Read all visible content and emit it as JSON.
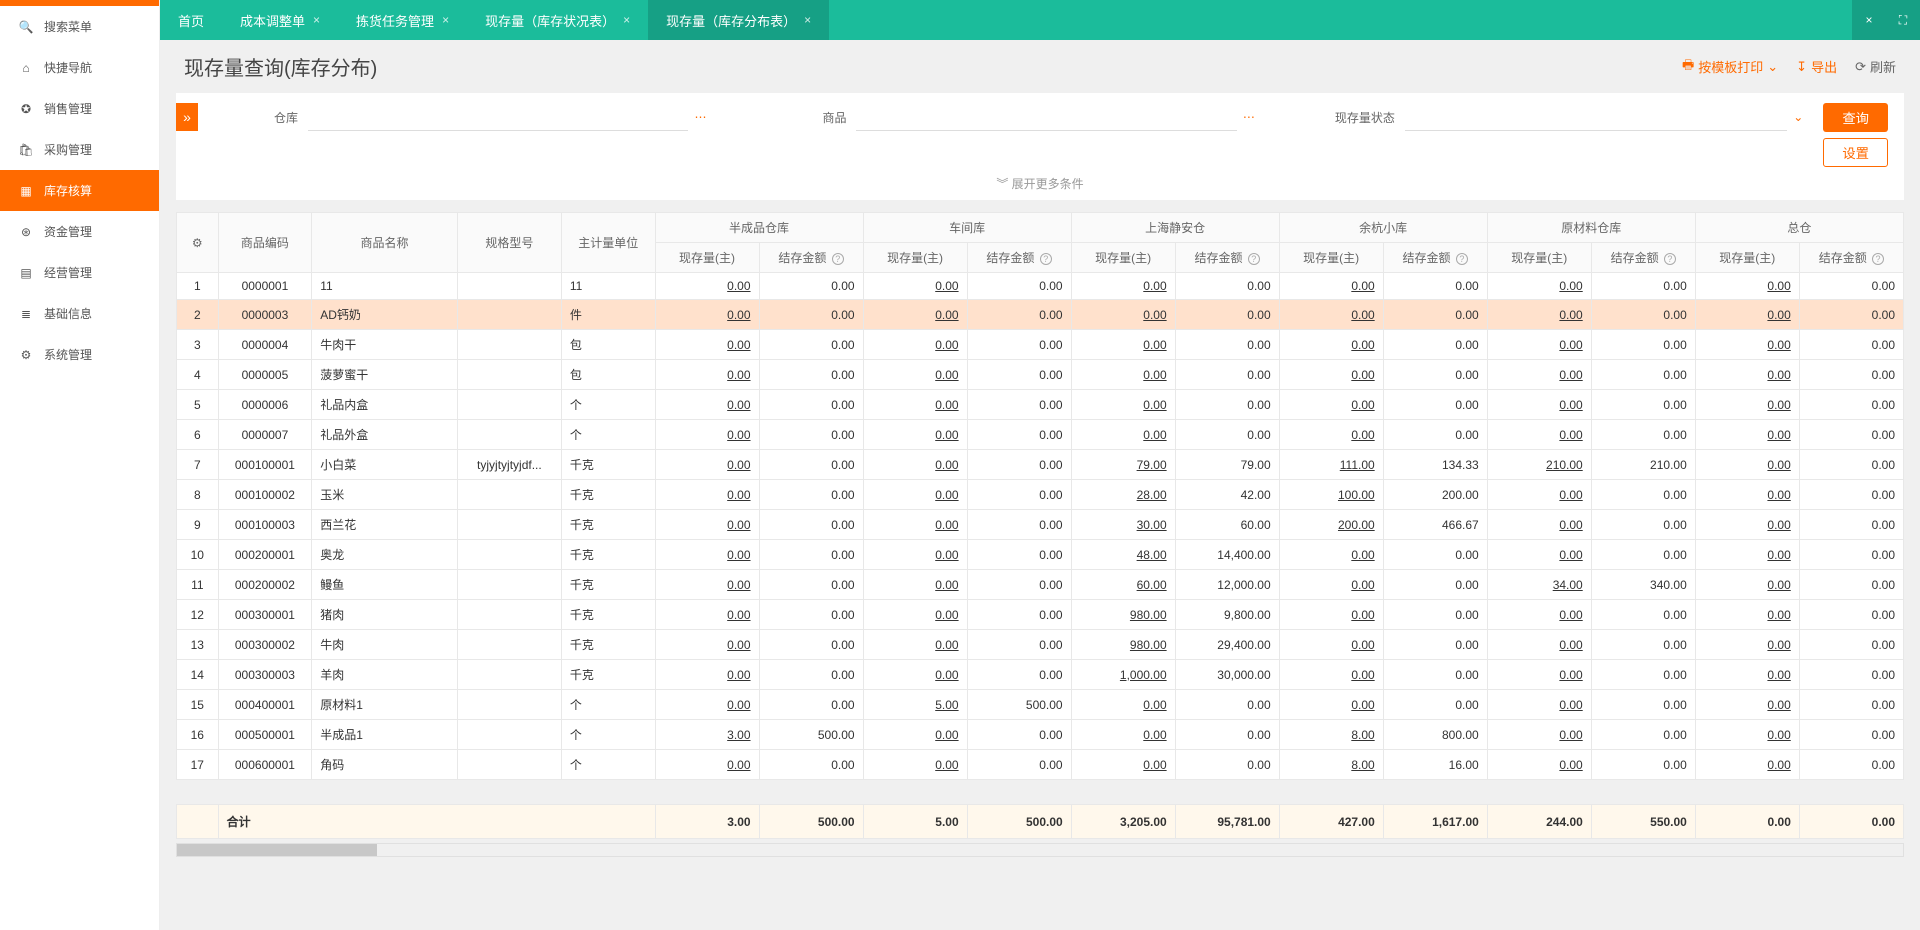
{
  "sidebar": {
    "items": [
      {
        "label": "搜索菜单",
        "icon": "search"
      },
      {
        "label": "快捷导航",
        "icon": "home"
      },
      {
        "label": "销售管理",
        "icon": "badge"
      },
      {
        "label": "采购管理",
        "icon": "bag"
      },
      {
        "label": "库存核算",
        "icon": "box",
        "active": true
      },
      {
        "label": "资金管理",
        "icon": "money"
      },
      {
        "label": "经营管理",
        "icon": "clipboard"
      },
      {
        "label": "基础信息",
        "icon": "layers"
      },
      {
        "label": "系统管理",
        "icon": "gear"
      }
    ]
  },
  "tabs": [
    {
      "label": "首页",
      "closable": false
    },
    {
      "label": "成本调整单",
      "closable": true
    },
    {
      "label": "拣货任务管理",
      "closable": true
    },
    {
      "label": "现存量（库存状况表）",
      "closable": true
    },
    {
      "label": "现存量（库存分布表）",
      "closable": true,
      "active": true
    }
  ],
  "page": {
    "title": "现存量查询(库存分布)",
    "print": "按模板打印",
    "export": "导出",
    "refresh": "刷新"
  },
  "filters": {
    "warehouse": {
      "label": "仓库",
      "value": ""
    },
    "product": {
      "label": "商品",
      "value": ""
    },
    "status": {
      "label": "现存量状态",
      "value": ""
    },
    "query": "查询",
    "settings": "设置",
    "expand": "展开更多条件"
  },
  "table": {
    "group_headers": [
      "",
      "商品编码",
      "商品名称",
      "规格型号",
      "主计量单位",
      "半成品仓库",
      "车间库",
      "上海静安仓",
      "余杭小库",
      "原材料仓库",
      "总仓"
    ],
    "sub_headers": [
      "现存量(主)",
      "结存金额"
    ],
    "gear_col": "⚙",
    "rows": [
      {
        "n": 1,
        "code": "0000001",
        "name": "11",
        "spec": "",
        "unit": "11",
        "v": [
          [
            "0.00",
            "0.00"
          ],
          [
            "0.00",
            "0.00"
          ],
          [
            "0.00",
            "0.00"
          ],
          [
            "0.00",
            "0.00"
          ],
          [
            "0.00",
            "0.00"
          ],
          [
            "0.00",
            "0.00"
          ]
        ]
      },
      {
        "n": 2,
        "code": "0000003",
        "name": "AD钙奶",
        "spec": "",
        "unit": "件",
        "hl": true,
        "v": [
          [
            "0.00",
            "0.00"
          ],
          [
            "0.00",
            "0.00"
          ],
          [
            "0.00",
            "0.00"
          ],
          [
            "0.00",
            "0.00"
          ],
          [
            "0.00",
            "0.00"
          ],
          [
            "0.00",
            "0.00"
          ]
        ]
      },
      {
        "n": 3,
        "code": "0000004",
        "name": "牛肉干",
        "spec": "",
        "unit": "包",
        "v": [
          [
            "0.00",
            "0.00"
          ],
          [
            "0.00",
            "0.00"
          ],
          [
            "0.00",
            "0.00"
          ],
          [
            "0.00",
            "0.00"
          ],
          [
            "0.00",
            "0.00"
          ],
          [
            "0.00",
            "0.00"
          ]
        ]
      },
      {
        "n": 4,
        "code": "0000005",
        "name": "菠萝蜜干",
        "spec": "",
        "unit": "包",
        "v": [
          [
            "0.00",
            "0.00"
          ],
          [
            "0.00",
            "0.00"
          ],
          [
            "0.00",
            "0.00"
          ],
          [
            "0.00",
            "0.00"
          ],
          [
            "0.00",
            "0.00"
          ],
          [
            "0.00",
            "0.00"
          ]
        ]
      },
      {
        "n": 5,
        "code": "0000006",
        "name": "礼品内盒",
        "spec": "",
        "unit": "个",
        "v": [
          [
            "0.00",
            "0.00"
          ],
          [
            "0.00",
            "0.00"
          ],
          [
            "0.00",
            "0.00"
          ],
          [
            "0.00",
            "0.00"
          ],
          [
            "0.00",
            "0.00"
          ],
          [
            "0.00",
            "0.00"
          ]
        ]
      },
      {
        "n": 6,
        "code": "0000007",
        "name": "礼品外盒",
        "spec": "",
        "unit": "个",
        "v": [
          [
            "0.00",
            "0.00"
          ],
          [
            "0.00",
            "0.00"
          ],
          [
            "0.00",
            "0.00"
          ],
          [
            "0.00",
            "0.00"
          ],
          [
            "0.00",
            "0.00"
          ],
          [
            "0.00",
            "0.00"
          ]
        ]
      },
      {
        "n": 7,
        "code": "000100001",
        "name": "小白菜",
        "spec": "tyjyjtyjtyjdf...",
        "unit": "千克",
        "v": [
          [
            "0.00",
            "0.00"
          ],
          [
            "0.00",
            "0.00"
          ],
          [
            "79.00",
            "79.00"
          ],
          [
            "111.00",
            "134.33"
          ],
          [
            "210.00",
            "210.00"
          ],
          [
            "0.00",
            "0.00"
          ]
        ]
      },
      {
        "n": 8,
        "code": "000100002",
        "name": "玉米",
        "spec": "",
        "unit": "千克",
        "v": [
          [
            "0.00",
            "0.00"
          ],
          [
            "0.00",
            "0.00"
          ],
          [
            "28.00",
            "42.00"
          ],
          [
            "100.00",
            "200.00"
          ],
          [
            "0.00",
            "0.00"
          ],
          [
            "0.00",
            "0.00"
          ]
        ]
      },
      {
        "n": 9,
        "code": "000100003",
        "name": "西兰花",
        "spec": "",
        "unit": "千克",
        "v": [
          [
            "0.00",
            "0.00"
          ],
          [
            "0.00",
            "0.00"
          ],
          [
            "30.00",
            "60.00"
          ],
          [
            "200.00",
            "466.67"
          ],
          [
            "0.00",
            "0.00"
          ],
          [
            "0.00",
            "0.00"
          ]
        ]
      },
      {
        "n": 10,
        "code": "000200001",
        "name": "奥龙",
        "spec": "",
        "unit": "千克",
        "v": [
          [
            "0.00",
            "0.00"
          ],
          [
            "0.00",
            "0.00"
          ],
          [
            "48.00",
            "14,400.00"
          ],
          [
            "0.00",
            "0.00"
          ],
          [
            "0.00",
            "0.00"
          ],
          [
            "0.00",
            "0.00"
          ]
        ]
      },
      {
        "n": 11,
        "code": "000200002",
        "name": "鳗鱼",
        "spec": "",
        "unit": "千克",
        "v": [
          [
            "0.00",
            "0.00"
          ],
          [
            "0.00",
            "0.00"
          ],
          [
            "60.00",
            "12,000.00"
          ],
          [
            "0.00",
            "0.00"
          ],
          [
            "34.00",
            "340.00"
          ],
          [
            "0.00",
            "0.00"
          ]
        ]
      },
      {
        "n": 12,
        "code": "000300001",
        "name": "猪肉",
        "spec": "",
        "unit": "千克",
        "v": [
          [
            "0.00",
            "0.00"
          ],
          [
            "0.00",
            "0.00"
          ],
          [
            "980.00",
            "9,800.00"
          ],
          [
            "0.00",
            "0.00"
          ],
          [
            "0.00",
            "0.00"
          ],
          [
            "0.00",
            "0.00"
          ]
        ]
      },
      {
        "n": 13,
        "code": "000300002",
        "name": "牛肉",
        "spec": "",
        "unit": "千克",
        "v": [
          [
            "0.00",
            "0.00"
          ],
          [
            "0.00",
            "0.00"
          ],
          [
            "980.00",
            "29,400.00"
          ],
          [
            "0.00",
            "0.00"
          ],
          [
            "0.00",
            "0.00"
          ],
          [
            "0.00",
            "0.00"
          ]
        ]
      },
      {
        "n": 14,
        "code": "000300003",
        "name": "羊肉",
        "spec": "",
        "unit": "千克",
        "v": [
          [
            "0.00",
            "0.00"
          ],
          [
            "0.00",
            "0.00"
          ],
          [
            "1,000.00",
            "30,000.00"
          ],
          [
            "0.00",
            "0.00"
          ],
          [
            "0.00",
            "0.00"
          ],
          [
            "0.00",
            "0.00"
          ]
        ]
      },
      {
        "n": 15,
        "code": "000400001",
        "name": "原材料1",
        "spec": "",
        "unit": "个",
        "v": [
          [
            "0.00",
            "0.00"
          ],
          [
            "5.00",
            "500.00"
          ],
          [
            "0.00",
            "0.00"
          ],
          [
            "0.00",
            "0.00"
          ],
          [
            "0.00",
            "0.00"
          ],
          [
            "0.00",
            "0.00"
          ]
        ]
      },
      {
        "n": 16,
        "code": "000500001",
        "name": "半成品1",
        "spec": "",
        "unit": "个",
        "v": [
          [
            "3.00",
            "500.00"
          ],
          [
            "0.00",
            "0.00"
          ],
          [
            "0.00",
            "0.00"
          ],
          [
            "8.00",
            "800.00"
          ],
          [
            "0.00",
            "0.00"
          ],
          [
            "0.00",
            "0.00"
          ]
        ]
      },
      {
        "n": 17,
        "code": "000600001",
        "name": "角码",
        "spec": "",
        "unit": "个",
        "v": [
          [
            "0.00",
            "0.00"
          ],
          [
            "0.00",
            "0.00"
          ],
          [
            "0.00",
            "0.00"
          ],
          [
            "8.00",
            "16.00"
          ],
          [
            "0.00",
            "0.00"
          ],
          [
            "0.00",
            "0.00"
          ]
        ]
      }
    ],
    "totals": {
      "label": "合计",
      "values": [
        "3.00",
        "500.00",
        "5.00",
        "500.00",
        "3,205.00",
        "95,781.00",
        "427.00",
        "1,617.00",
        "244.00",
        "550.00",
        "0.00",
        "0.00"
      ]
    }
  },
  "colors": {
    "primary": "#ff6a00",
    "teal": "#1bbc9b",
    "teal_dark": "#16a085",
    "highlight": "#ffe1cc",
    "totals_bg": "#fff8ec"
  }
}
